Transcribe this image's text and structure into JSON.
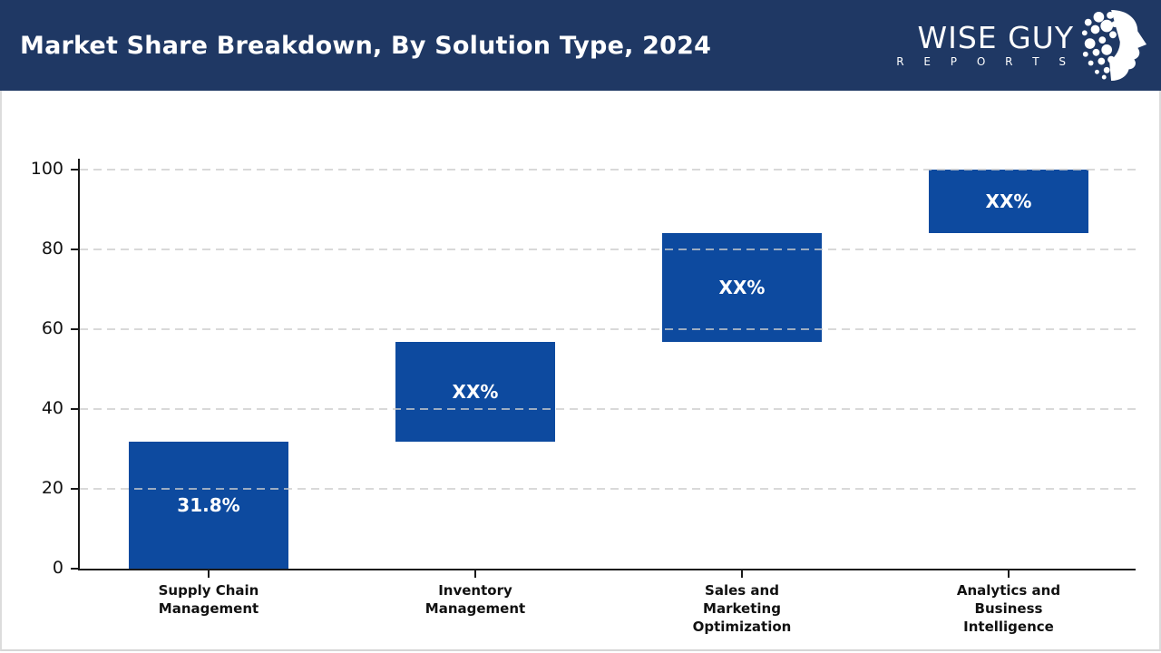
{
  "header": {
    "title": "Market Share Breakdown, By Solution Type, 2024",
    "background_color": "#1f3864",
    "logo": {
      "name": "WISE GUY",
      "sub": "R E P O R T S"
    }
  },
  "watermark": {
    "big_text": "WISE GUY",
    "sub_text": "R E P O R T S"
  },
  "chart_data": {
    "type": "bar",
    "subtype": "waterfall",
    "title": "Market Share Breakdown, By Solution Type, 2024",
    "categories": [
      {
        "name": "Supply Chain Management",
        "lines": [
          "Supply Chain",
          "Management"
        ]
      },
      {
        "name": "Inventory Management",
        "lines": [
          "Inventory",
          "Management"
        ]
      },
      {
        "name": "Sales and Marketing Optimization",
        "lines": [
          "Sales and",
          "Marketing",
          "Optimization"
        ]
      },
      {
        "name": "Analytics and Business Intelligence",
        "lines": [
          "Analytics and",
          "Business",
          "Intelligence"
        ]
      }
    ],
    "segments": [
      {
        "start": 0,
        "end": 31.8,
        "label": "31.8%"
      },
      {
        "start": 31.8,
        "end": 56.8,
        "label": "XX%"
      },
      {
        "start": 56.8,
        "end": 84.0,
        "label": "XX%"
      },
      {
        "start": 84.0,
        "end": 100.0,
        "label": "XX%"
      }
    ],
    "ylim": [
      0,
      100
    ],
    "yticks": [
      0,
      20,
      40,
      60,
      80,
      100
    ],
    "grid": "dashed-horizontal",
    "legend": "none",
    "bar_color": "#0d4a9f",
    "value_label_color": "#ffffff",
    "axis_color": "#1a1a1a"
  }
}
